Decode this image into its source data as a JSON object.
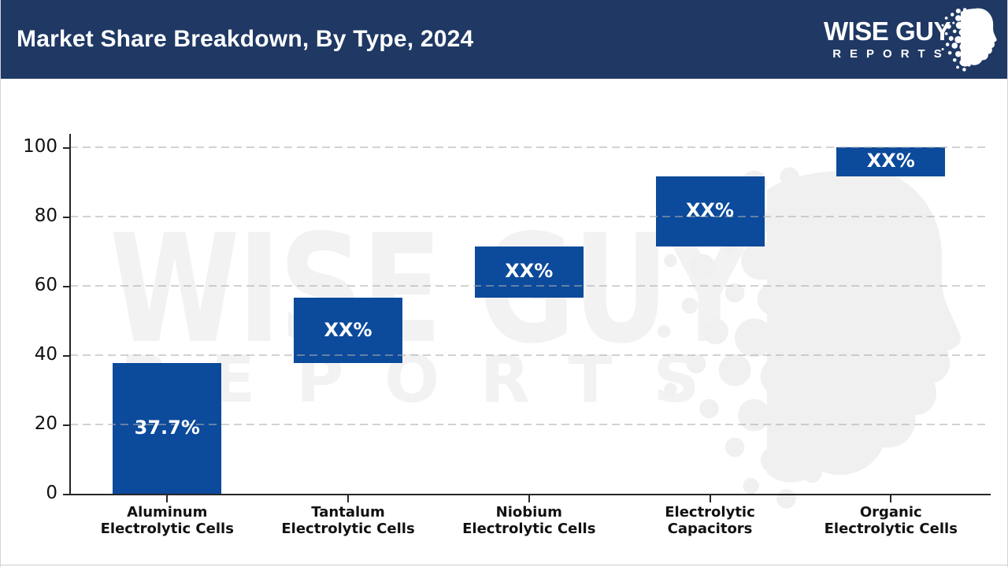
{
  "header": {
    "title": "Market Share Breakdown, By Type, 2024",
    "logo": {
      "line1": "WISE GUY",
      "line2": "REPORTS"
    }
  },
  "watermark": {
    "line1": "WISE GUY",
    "line2": "REPORTS"
  },
  "colors": {
    "header_bg": "#1f3864",
    "bar": "#0c4a9b",
    "bar_label": "#ffffff",
    "axis": "#262626",
    "tick_label": "#111111",
    "gridline": "#d6d6d6",
    "watermark": "#f2f2f2"
  },
  "chart_data": {
    "type": "bar",
    "subtype": "waterfall",
    "title": "Market Share Breakdown, By Type, 2024",
    "categories": [
      [
        "Aluminum",
        "Electrolytic Cells"
      ],
      [
        "Tantalum",
        "Electrolytic Cells"
      ],
      [
        "Niobium",
        "Electrolytic Cells"
      ],
      [
        "Electrolytic",
        "Capacitors"
      ],
      [
        "Organic",
        "Electrolytic Cells"
      ]
    ],
    "segments": [
      {
        "start": 0,
        "end": 37.7,
        "label": "37.7%"
      },
      {
        "start": 37.7,
        "end": 56.6,
        "label": "XX%"
      },
      {
        "start": 56.6,
        "end": 71.4,
        "label": "XX%"
      },
      {
        "start": 71.4,
        "end": 91.6,
        "label": "XX%"
      },
      {
        "start": 91.6,
        "end": 100,
        "label": "XX%"
      }
    ],
    "yticks": [
      0,
      20,
      40,
      60,
      80,
      100
    ],
    "ylim": [
      0,
      104
    ],
    "xlabel": "",
    "ylabel": "",
    "grid": "dashed-horizontal",
    "legend": "none",
    "bar_color": "#0c4a9b"
  }
}
